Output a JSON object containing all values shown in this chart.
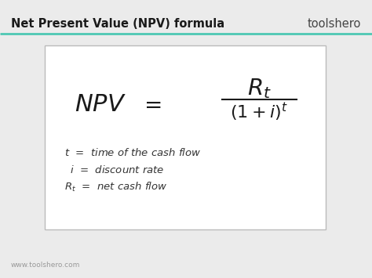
{
  "title": "Net Present Value (NPV) formula",
  "brand": "toolshero",
  "watermark": "www.toolshero.com",
  "bg_color": "#ebebeb",
  "box_bg_color": "#ffffff",
  "title_color": "#1a1a1a",
  "brand_color": "#444444",
  "watermark_color": "#999999",
  "teal_line_color": "#4dc8b4",
  "formula_color": "#1a1a1a",
  "legend_color": "#333333",
  "title_fontsize": 10.5,
  "brand_fontsize": 10.5,
  "watermark_fontsize": 6.5,
  "legend_fontsize": 9.5
}
